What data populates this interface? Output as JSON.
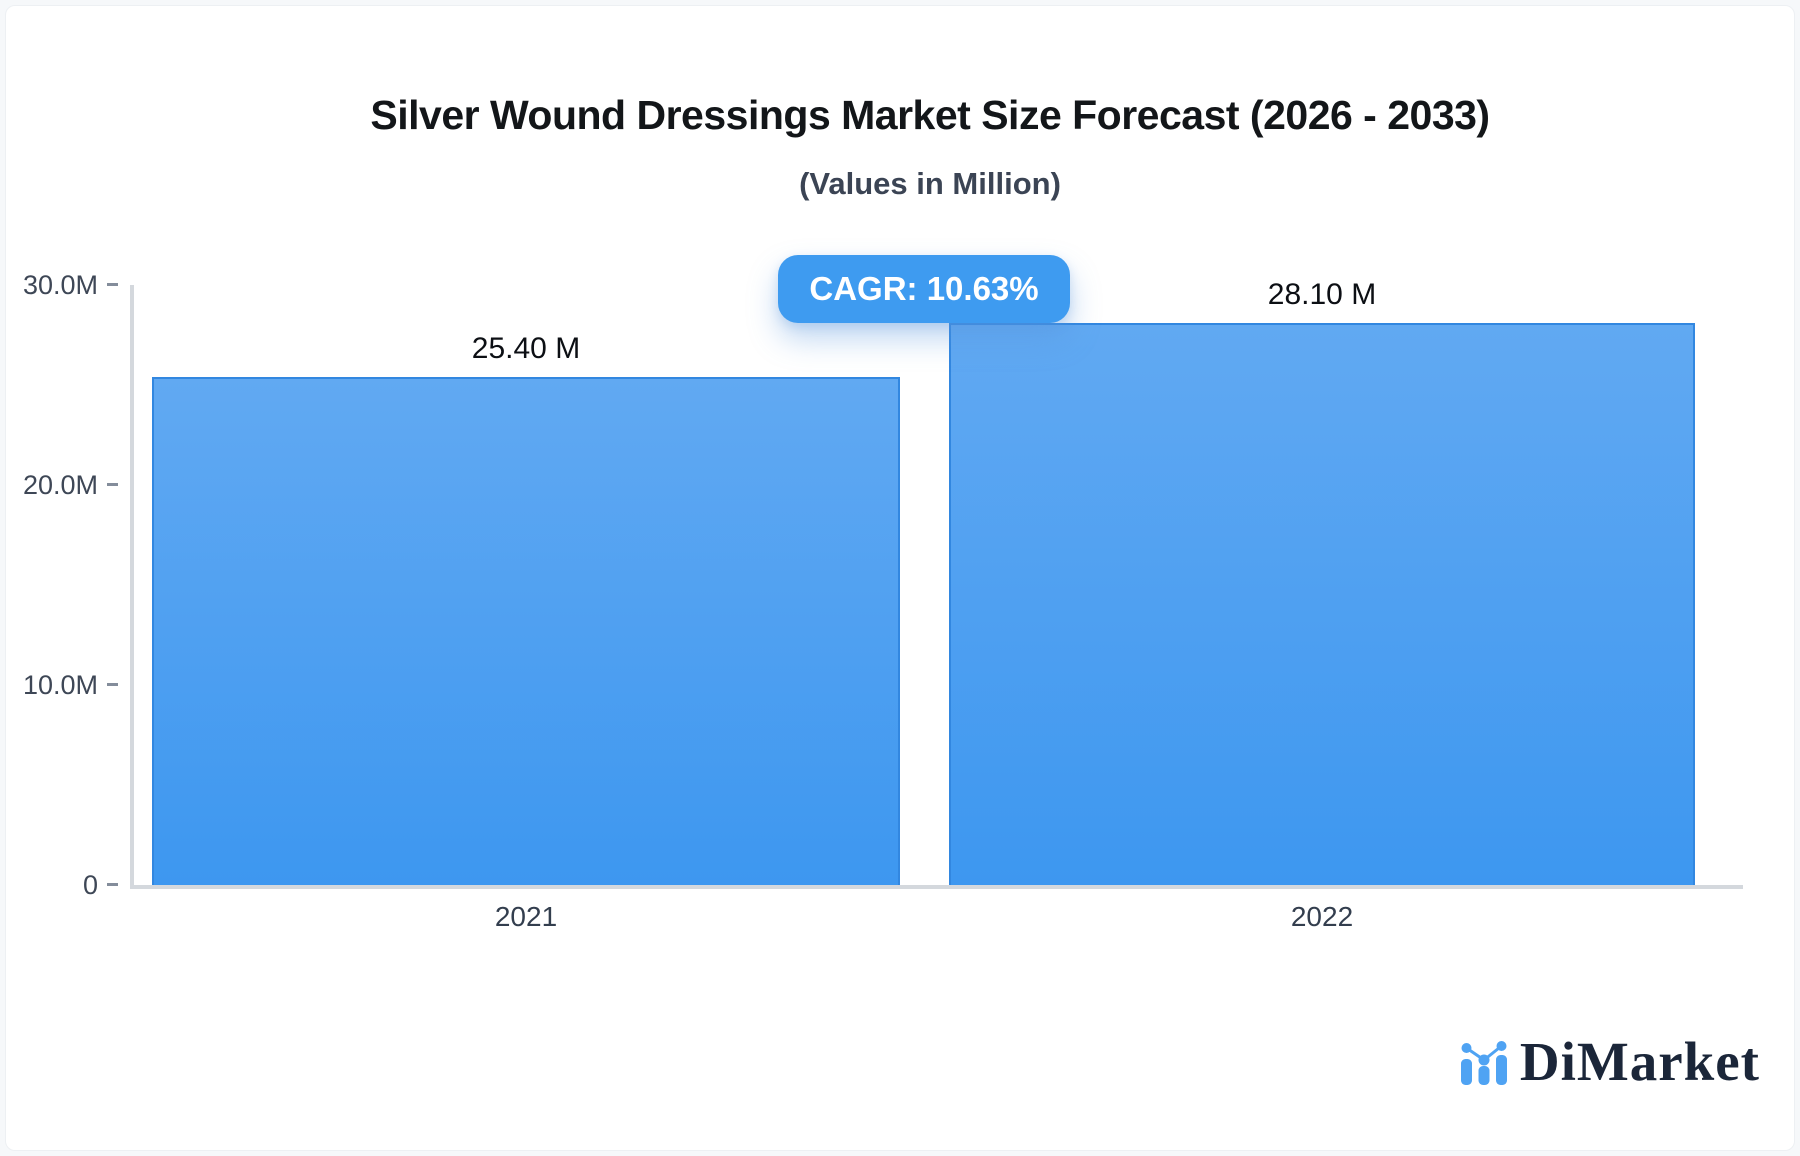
{
  "title": "Silver Wound Dressings Market Size Forecast (2026 - 2033)",
  "subtitle": "(Values in Million)",
  "cagr_badge": "CAGR: 10.63%",
  "chart_data": {
    "type": "bar",
    "categories": [
      "2021",
      "2022"
    ],
    "values": [
      25.4,
      28.1
    ],
    "value_labels": [
      "25.40 M",
      "28.10 M"
    ],
    "title": "Silver Wound Dressings Market Size Forecast (2026 - 2033)",
    "subtitle": "(Values in Million)",
    "xlabel": "",
    "ylabel": "",
    "ylim": [
      0,
      30
    ],
    "yticks": [
      {
        "value": 30,
        "label": "30.0M"
      },
      {
        "value": 20,
        "label": "20.0M"
      },
      {
        "value": 10,
        "label": "10.0M"
      },
      {
        "value": 0,
        "label": "0"
      }
    ],
    "grid": false,
    "legend": "none",
    "bar_gradient_top": "#61a9f2",
    "bar_gradient_bottom": "#3d97f0",
    "bar_border_color": "#3287e0"
  },
  "branding": {
    "logo_text": "DiMarket",
    "logo_icon": "bar-chart-icon",
    "logo_text_color": "#1b2639",
    "logo_icon_color": "#4fa3f3"
  },
  "colors": {
    "badge_blue": "#3e9bf0",
    "axis_line": "#d4d8dd",
    "tick_text": "#3e4756",
    "category_text": "#333e4e",
    "title_text": "#131619",
    "subtitle_text": "#3b4454",
    "card_background": "#ffffff",
    "page_background": "#f6f8fa"
  }
}
